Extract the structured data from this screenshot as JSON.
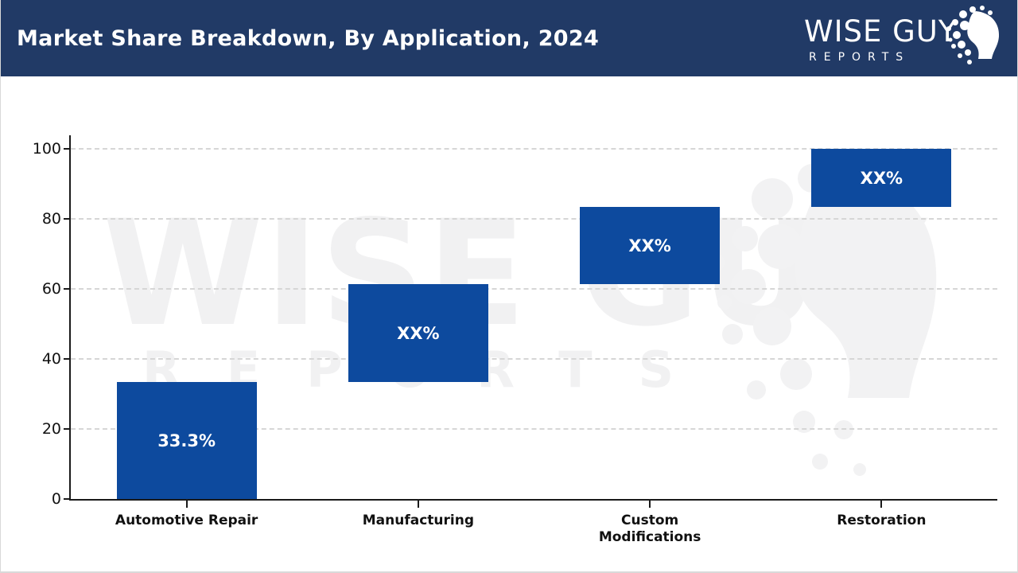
{
  "header": {
    "title": "Market Share Breakdown, By Application, 2024",
    "bg_color": "#213a66",
    "logo": {
      "line1": "WISE GUY",
      "line2": "REPORTS"
    }
  },
  "watermark": {
    "line1": "WISE GUY",
    "line2": "REPORTS"
  },
  "chart_data": {
    "type": "bar",
    "subtype": "waterfall",
    "title": "Market Share Breakdown, By Application, 2024",
    "xlabel": "",
    "ylabel": "",
    "ylim": [
      0,
      100
    ],
    "yticks": [
      0,
      20,
      40,
      60,
      80,
      100
    ],
    "grid": "horizontal-dashed",
    "legend": "none",
    "bar_color": "#0d4a9e",
    "label_color": "#ffffff",
    "categories": [
      "Automotive Repair",
      "Manufacturing",
      "Custom Modifications",
      "Restoration"
    ],
    "segments": [
      {
        "category": "Automotive Repair",
        "start": 0,
        "end": 33.3,
        "label": "33.3%"
      },
      {
        "category": "Manufacturing",
        "start": 33.3,
        "end": 61.3,
        "label": "XX%"
      },
      {
        "category": "Custom Modifications",
        "start": 61.3,
        "end": 83.3,
        "label": "XX%"
      },
      {
        "category": "Restoration",
        "start": 83.3,
        "end": 100,
        "label": "XX%"
      }
    ]
  }
}
